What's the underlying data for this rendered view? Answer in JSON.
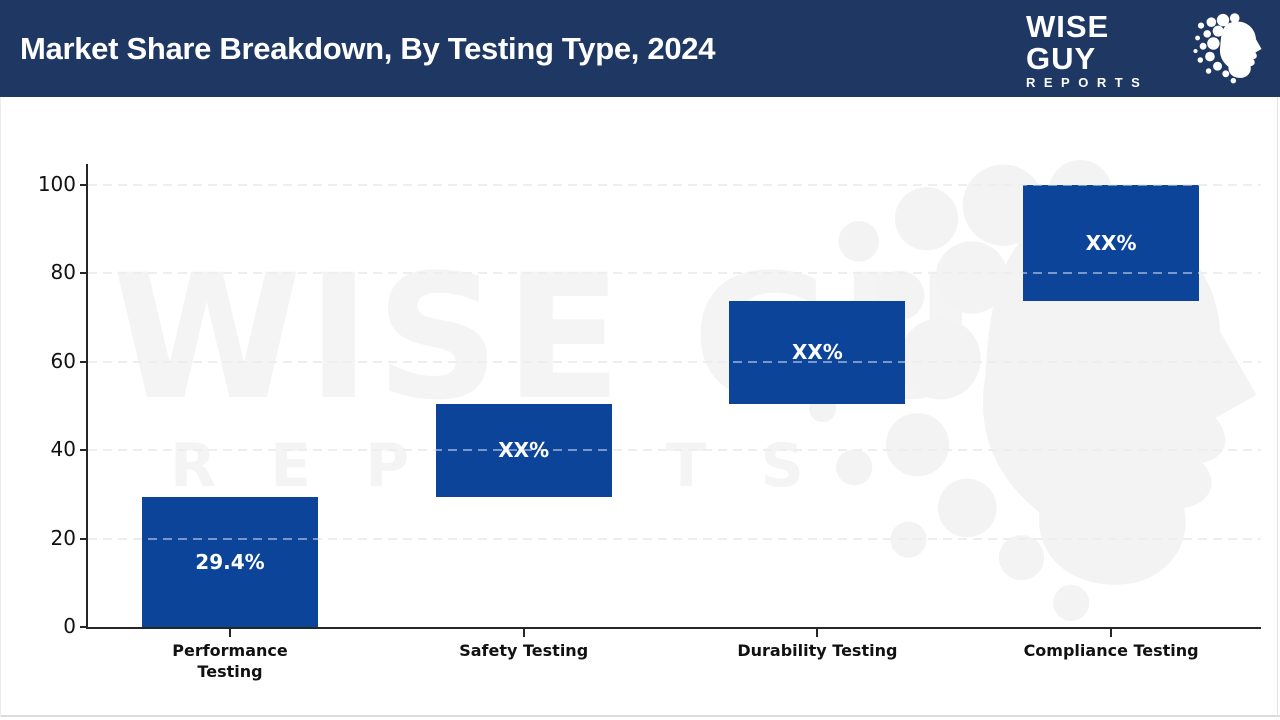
{
  "header": {
    "title": "Market Share Breakdown, By Testing Type, 2024",
    "background_color": "#1F3763",
    "brand": {
      "line1": "WISE GUY",
      "line2": "REPORTS"
    }
  },
  "watermark": {
    "line1": "WISE GUY",
    "line2": "REPORTS"
  },
  "chart_data": {
    "type": "bar",
    "subtype": "waterfall",
    "title": "Market Share Breakdown, By Testing Type, 2024",
    "xlabel": "",
    "ylabel": "",
    "ylim": [
      0,
      105
    ],
    "yticks": [
      0,
      20,
      40,
      60,
      80,
      100
    ],
    "grid": true,
    "grid_style": "dashed",
    "bar_color": "#0B4499",
    "label_color": "#ffffff",
    "categories": [
      {
        "label": "Performance Testing",
        "lines": [
          "Performance",
          "Testing"
        ]
      },
      {
        "label": "Safety Testing",
        "lines": [
          "Safety Testing"
        ]
      },
      {
        "label": "Durability Testing",
        "lines": [
          "Durability Testing"
        ]
      },
      {
        "label": "Compliance Testing",
        "lines": [
          "Compliance Testing"
        ]
      }
    ],
    "segments": [
      {
        "category": "Performance Testing",
        "start": 0,
        "end": 29.4,
        "label": "29.4%"
      },
      {
        "category": "Safety Testing",
        "start": 29.4,
        "end": 50.5,
        "label": "XX%"
      },
      {
        "category": "Durability Testing",
        "start": 50.5,
        "end": 73.8,
        "label": "XX%"
      },
      {
        "category": "Compliance Testing",
        "start": 73.8,
        "end": 100,
        "label": "XX%"
      }
    ]
  }
}
